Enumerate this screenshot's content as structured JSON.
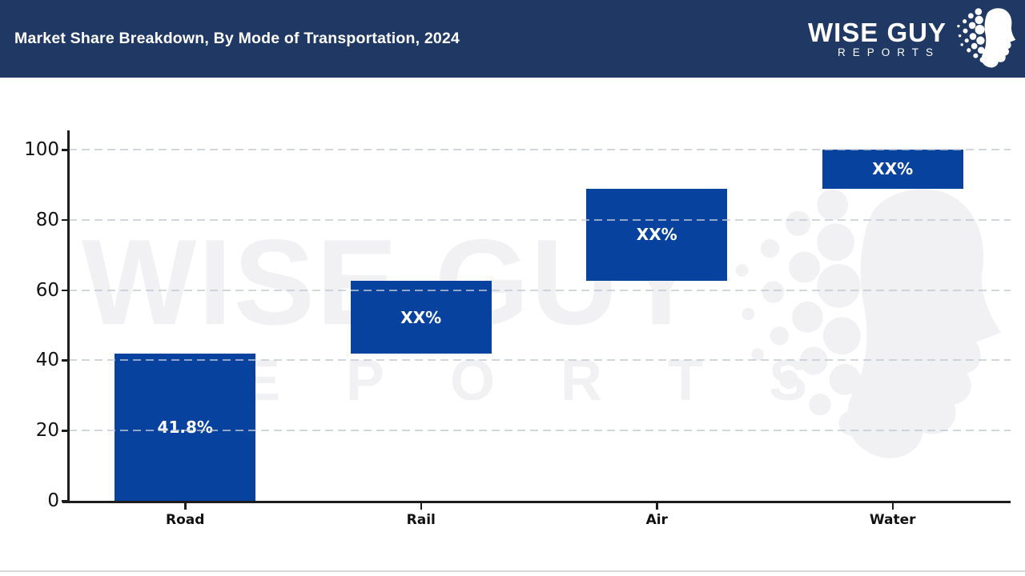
{
  "header": {
    "title": "Market Share Breakdown, By Mode of Transportation, 2024",
    "logo": {
      "line1": "WISE GUY",
      "line2": "REPORTS"
    }
  },
  "watermark": {
    "line1": "WISE GUY",
    "line2": "REPORTS"
  },
  "chart_data": {
    "type": "bar",
    "subtype": "floating-waterfall",
    "title": "Market Share Breakdown, By Mode of Transportation, 2024",
    "categories": [
      "Road",
      "Rail",
      "Air",
      "Water"
    ],
    "segments": [
      {
        "category": "Road",
        "start": 0,
        "end": 41.8,
        "label": "41.8%"
      },
      {
        "category": "Rail",
        "start": 41.8,
        "end": 62.7,
        "label": "XX%"
      },
      {
        "category": "Air",
        "start": 62.7,
        "end": 88.9,
        "label": "XX%"
      },
      {
        "category": "Water",
        "start": 88.9,
        "end": 100,
        "label": "XX%"
      }
    ],
    "yticks": [
      0,
      20,
      40,
      60,
      80,
      100
    ],
    "ylim": [
      0,
      105
    ],
    "xlabel": "",
    "ylabel": "",
    "legend": "none",
    "grid": "horizontal-dashed",
    "bar_color": "#07439e",
    "bar_label_color": "#ffffff",
    "axis_color": "#1c1c1c",
    "grid_color": "#dcdcdc",
    "header_bg": "#203864",
    "watermark_color": "#f1f1f4"
  }
}
